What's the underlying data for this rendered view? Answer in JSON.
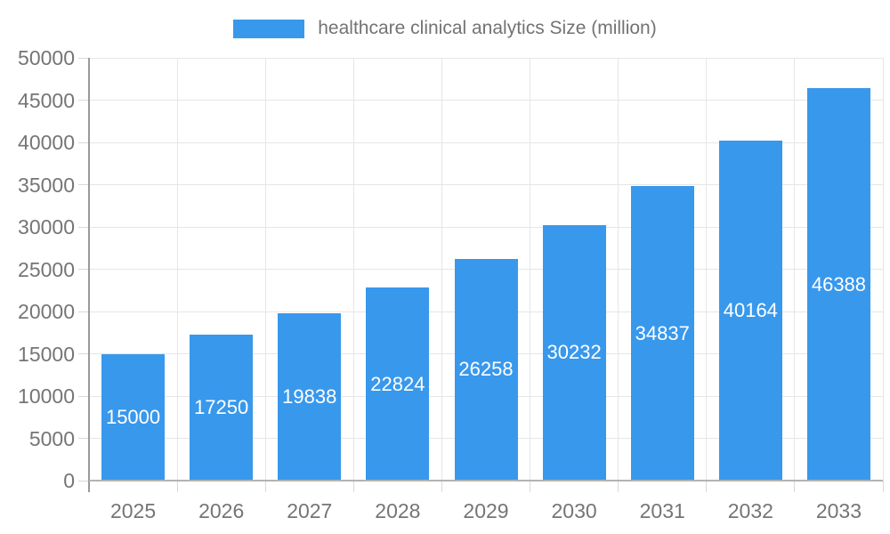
{
  "legend": {
    "label": "healthcare clinical analytics Size (million)"
  },
  "chart_data": {
    "type": "bar",
    "title": "healthcare clinical analytics Size (million)",
    "categories": [
      "2025",
      "2026",
      "2027",
      "2028",
      "2029",
      "2030",
      "2031",
      "2032",
      "2033"
    ],
    "values": [
      15000,
      17250,
      19838,
      22824,
      26258,
      30232,
      34837,
      40164,
      46388
    ],
    "xlabel": "",
    "ylabel": "",
    "ylim": [
      0,
      50000
    ],
    "ytick_step": 5000,
    "ytick_labels": [
      "0",
      "5000",
      "10000",
      "15000",
      "20000",
      "25000",
      "30000",
      "35000",
      "40000",
      "45000",
      "50000"
    ],
    "grid": true,
    "legend_position": "top-center",
    "bar_color": "#3898ec",
    "value_label_color": "#ffffff",
    "axis_text_color": "#757575",
    "gridline_color": "#e6e6e6",
    "value_labels_inside_bars": true
  }
}
